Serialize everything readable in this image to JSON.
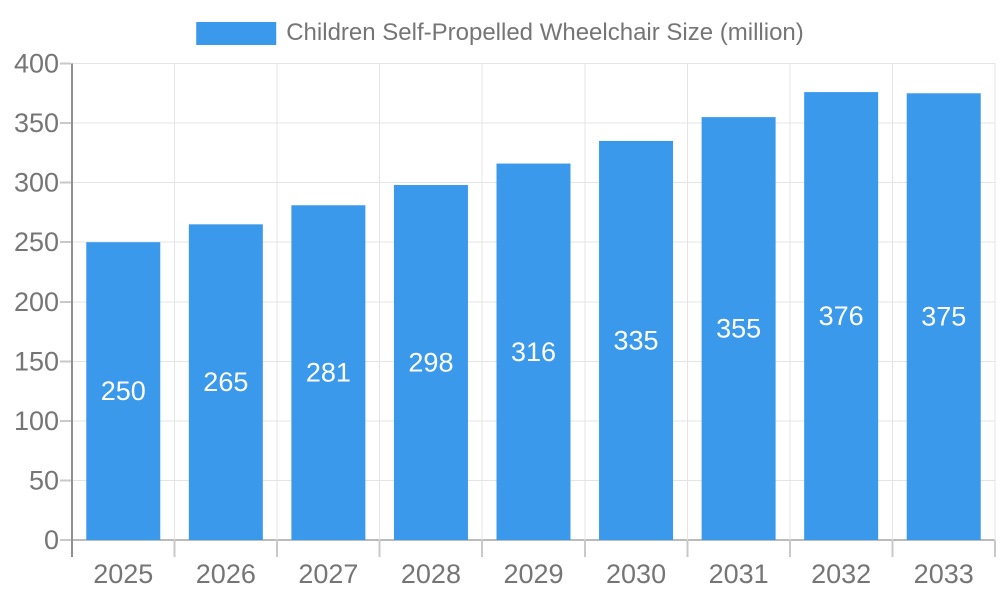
{
  "legend": {
    "label": "Children Self-Propelled Wheelchair Size (million)"
  },
  "chart_data": {
    "type": "bar",
    "title": "",
    "categories": [
      "2025",
      "2026",
      "2027",
      "2028",
      "2029",
      "2030",
      "2031",
      "2032",
      "2033"
    ],
    "series": [
      {
        "name": "Children Self-Propelled Wheelchair Size (million)",
        "values": [
          250,
          265,
          281,
          298,
          316,
          335,
          355,
          376,
          375
        ]
      }
    ],
    "xlabel": "",
    "ylabel": "",
    "ylim": [
      0,
      400
    ],
    "yticks": [
      0,
      50,
      100,
      150,
      200,
      250,
      300,
      350,
      400
    ],
    "grid": true,
    "legend_position": "top-center",
    "bar_label_position": "inside-center",
    "colors": {
      "bar": "#3B99EC",
      "grid": "#E4E4E4",
      "baseline": "#BBBBBB",
      "axis_line": "#909090",
      "tick": "#C9C9C9",
      "tick_label": "#757575",
      "bar_label": "#FFFFFF",
      "background": "#FFFFFF"
    }
  }
}
